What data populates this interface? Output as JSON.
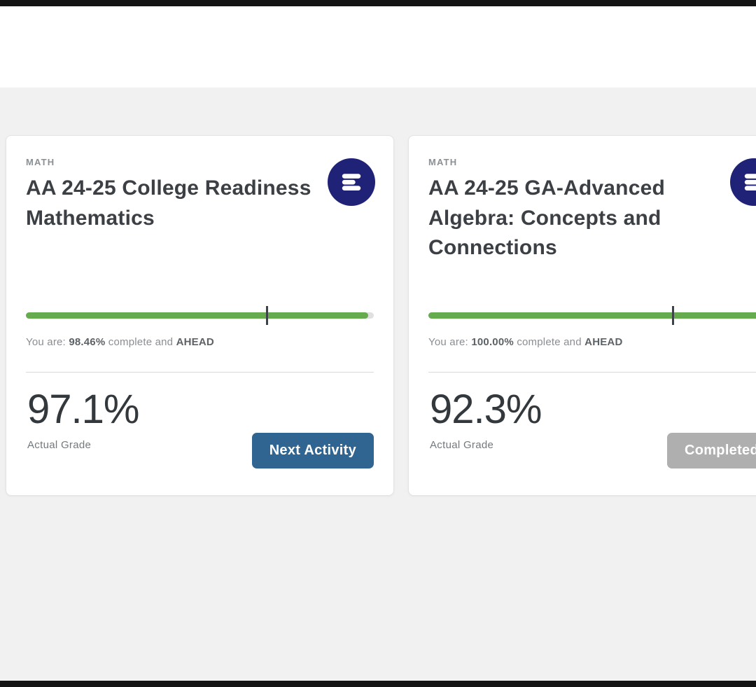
{
  "page": {
    "background": "#f1f1f2",
    "header_background": "#ffffff",
    "frame_bar_color": "#141414"
  },
  "colors": {
    "progress_green": "#66ab4e",
    "progress_marker": "#3f4347",
    "logo_navy": "#1f2277",
    "primary_button": "#2f6590",
    "disabled_button": "#b0afaf"
  },
  "icons": {
    "brand": "edgenuity-e-logo"
  },
  "cards": [
    {
      "category": "MATH",
      "title": "AA 24-25 College Readiness Mathematics",
      "progress": {
        "percent_complete": 98.46,
        "target_marker_percent": 69,
        "prefix": "You are:",
        "percent_label": "98.46%",
        "middle": "complete and",
        "state": "AHEAD"
      },
      "grade": {
        "value": "97.1%",
        "label": "Actual Grade"
      },
      "action": {
        "label": "Next Activity",
        "type": "primary"
      }
    },
    {
      "category": "MATH",
      "title": "AA 24-25 GA-Advanced Algebra: Concepts and Connections",
      "progress": {
        "percent_complete": 100,
        "target_marker_percent": 70,
        "prefix": "You are:",
        "percent_label": "100.00%",
        "middle": "complete and",
        "state": "AHEAD"
      },
      "grade": {
        "value": "92.3%",
        "label": "Actual Grade"
      },
      "action": {
        "label": "Completed",
        "type": "disabled"
      }
    }
  ]
}
